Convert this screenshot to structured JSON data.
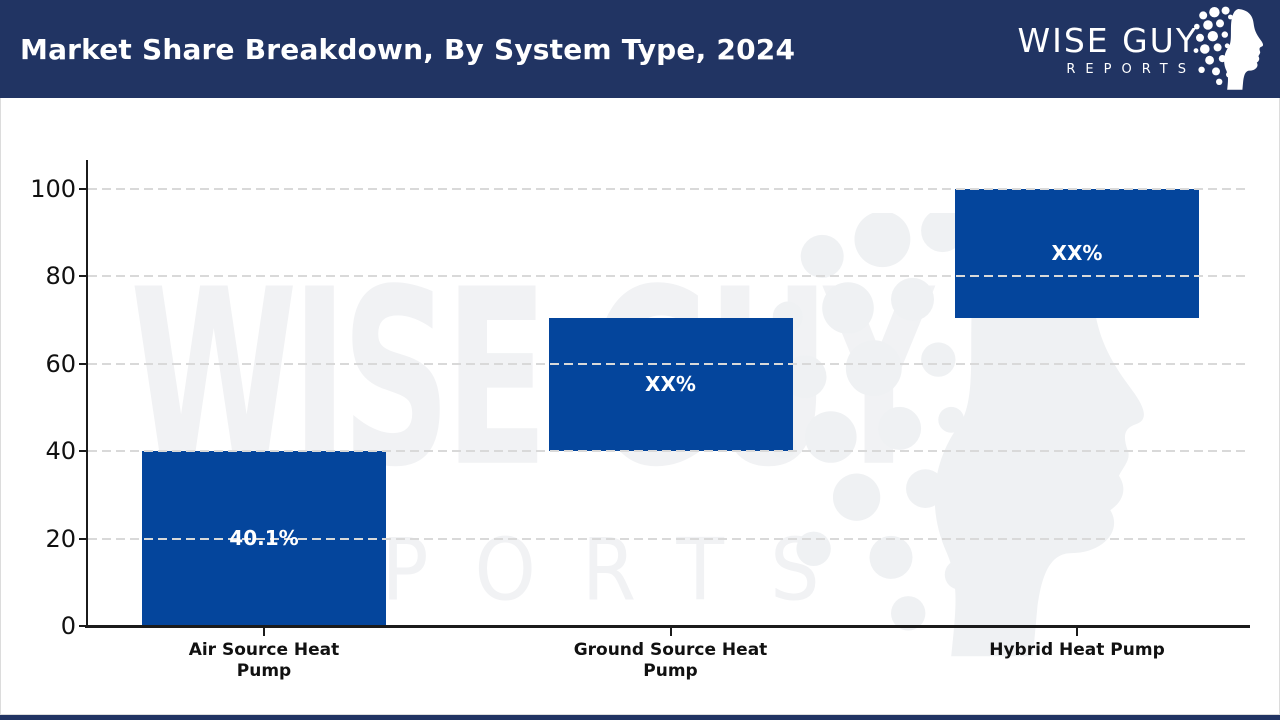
{
  "header": {
    "title": "Market Share Breakdown, By System Type, 2024",
    "bg_color": "#213463",
    "logo": {
      "line1": "WISE GUY",
      "line2": "REPORTS",
      "face_icon": "dotted-face-profile"
    }
  },
  "watermark": {
    "line1": "WISE GUY",
    "line2": "REPORTS",
    "face_icon": "dotted-face-profile"
  },
  "chart_data": {
    "type": "bar",
    "subtype": "floating-segment-progression",
    "title": "Market Share Breakdown, By System Type, 2024",
    "xlabel": "",
    "ylabel": "",
    "categories": [
      "Air Source Heat\nPump",
      "Ground Source Heat\nPump",
      "Hybrid Heat Pump"
    ],
    "segments": [
      {
        "category": "Air Source Heat Pump",
        "start": 0,
        "end": 40.1,
        "value_label": "40.1%"
      },
      {
        "category": "Ground Source Heat Pump",
        "start": 40.1,
        "end": 70.5,
        "value_label": "XX%"
      },
      {
        "category": "Hybrid Heat Pump",
        "start": 70.5,
        "end": 100,
        "value_label": "XX%"
      }
    ],
    "yticks": [
      0,
      20,
      40,
      60,
      80,
      100
    ],
    "ylim": [
      0,
      106
    ],
    "grid": "horizontal-dashed",
    "legend": "none",
    "bar_color": "#04459c",
    "value_label_color": "#ffffff",
    "axis_color": "#1b1b1b"
  },
  "footer": {
    "bg_color": "#213463"
  }
}
